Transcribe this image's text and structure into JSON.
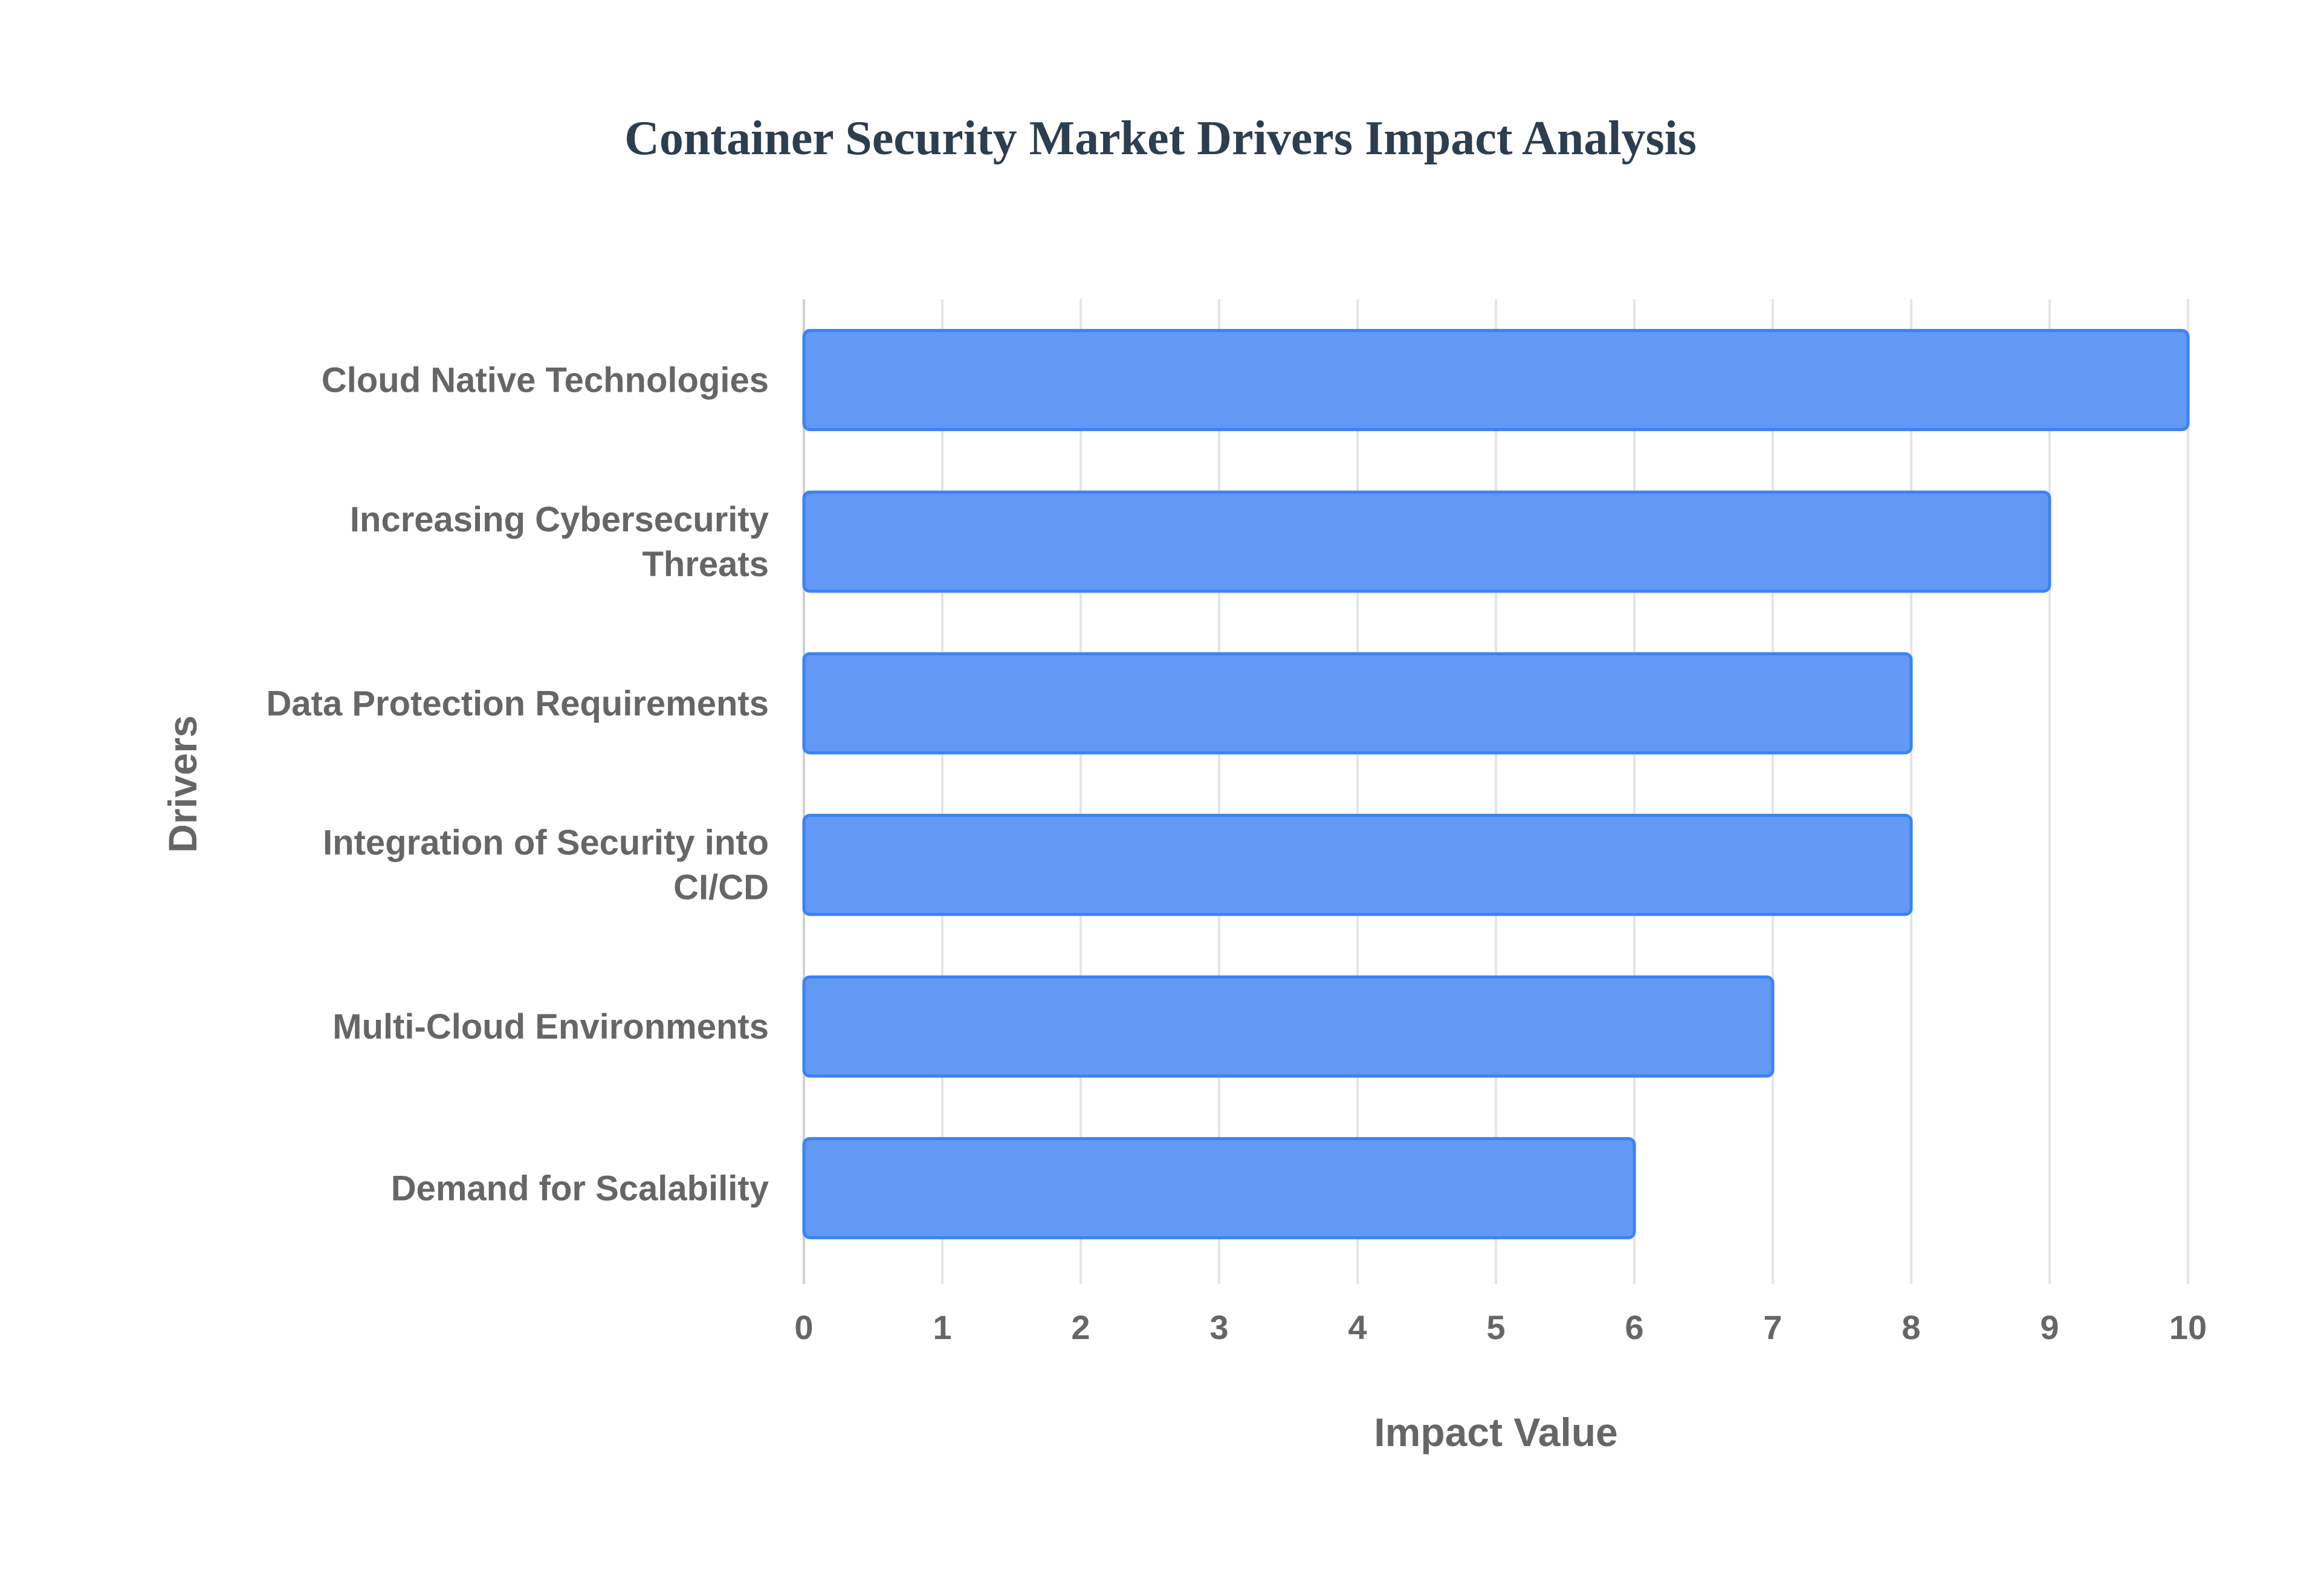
{
  "chart_data": {
    "type": "bar",
    "orientation": "horizontal",
    "title": "Container Security Market Drivers Impact Analysis",
    "xlabel": "Impact Value",
    "ylabel": "Drivers",
    "categories": [
      "Cloud Native Technologies",
      "Increasing Cybersecurity Threats",
      "Data Protection Requirements",
      "Integration of Security into CI/CD",
      "Multi-Cloud Environments",
      "Demand for Scalability"
    ],
    "category_lines": [
      [
        "Cloud Native Technologies"
      ],
      [
        "Increasing Cybersecurity",
        "Threats"
      ],
      [
        "Data Protection Requirements"
      ],
      [
        "Integration of Security into",
        "CI/CD"
      ],
      [
        "Multi-Cloud Environments"
      ],
      [
        "Demand for Scalability"
      ]
    ],
    "values": [
      10,
      9,
      8,
      8,
      7,
      6
    ],
    "xlim": [
      0,
      10
    ],
    "xticks": [
      "0",
      "1",
      "2",
      "3",
      "4",
      "5",
      "6",
      "7",
      "8",
      "9",
      "10"
    ],
    "grid": true,
    "legend": "none",
    "colors": {
      "bar_fill": "#6199f5",
      "bar_border": "#3b82f6",
      "grid": "#e5e5e5",
      "text": "#666666",
      "title": "#2c3e50"
    }
  }
}
